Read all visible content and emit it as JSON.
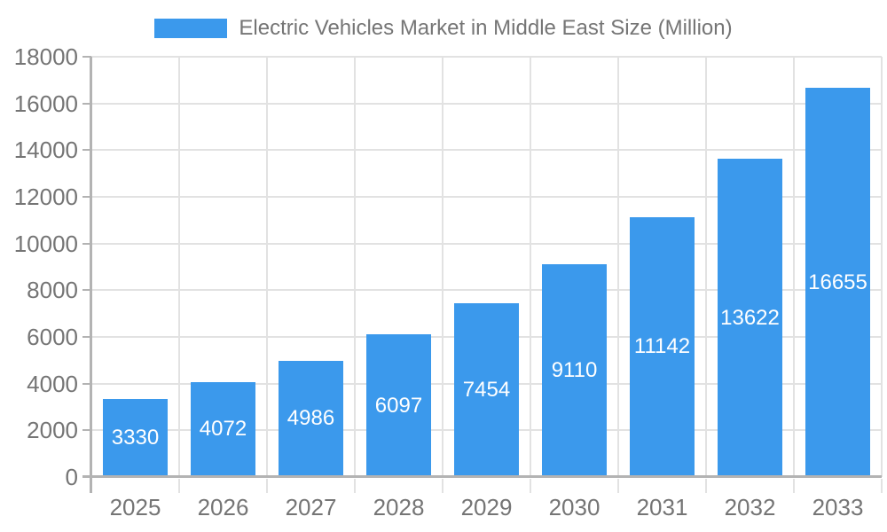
{
  "chart_data": {
    "type": "bar",
    "title": "Electric Vehicles Market in Middle East Size (Million)",
    "categories": [
      "2025",
      "2026",
      "2027",
      "2028",
      "2029",
      "2030",
      "2031",
      "2032",
      "2033"
    ],
    "values": [
      3330,
      4072,
      4986,
      6097,
      7454,
      9110,
      11142,
      13622,
      16655
    ],
    "xlabel": "",
    "ylabel": "",
    "ylim": [
      0,
      18000
    ],
    "ytick_interval": 2000,
    "yticks": [
      0,
      2000,
      4000,
      6000,
      8000,
      10000,
      12000,
      14000,
      16000,
      18000
    ],
    "grid": true,
    "legend_position": "top-center",
    "value_labels": "inside-center"
  },
  "colors": {
    "bar": "#3b99ec",
    "value_label": "#ffffff",
    "axis_text": "#757575",
    "grid_line": "#e2e2e2",
    "axis_line": "#b3b3b3",
    "background": "#ffffff"
  }
}
